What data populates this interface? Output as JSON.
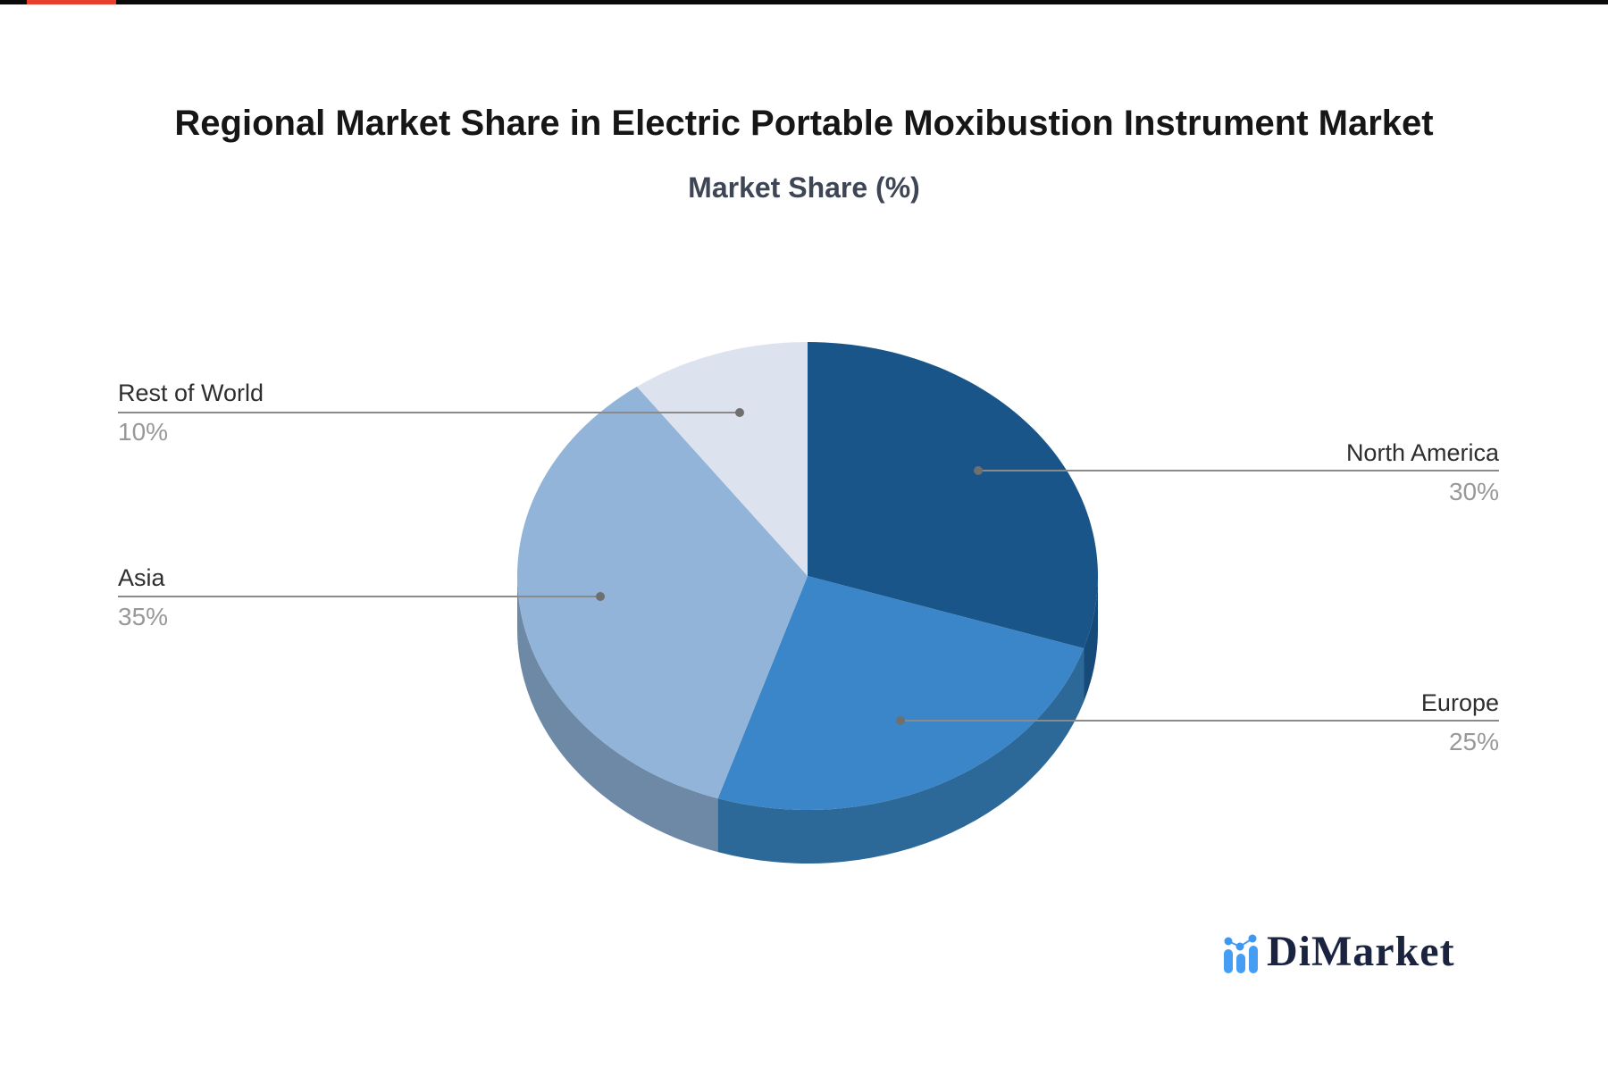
{
  "page": {
    "topbar": {
      "bar_color": "#0a0a0a",
      "accent_color": "#e8402e"
    }
  },
  "chart_data": {
    "type": "pie",
    "style": "3d",
    "title": "Regional Market Share in Electric Portable Moxibustion Instrument Market",
    "subtitle": "Market Share (%)",
    "unit": "%",
    "start_angle": "top",
    "direction": "clockwise",
    "legend_position": "callout-labels",
    "slices": [
      {
        "label": "North America",
        "value": 30,
        "pct_label": "30%",
        "color": "#1A5589",
        "side_color": "#164A79"
      },
      {
        "label": "Europe",
        "value": 25,
        "pct_label": "25%",
        "color": "#3A86C8",
        "side_color": "#2C6898"
      },
      {
        "label": "Asia",
        "value": 35,
        "pct_label": "35%",
        "color": "#92B4D8",
        "side_color": "#6E89A6"
      },
      {
        "label": "Rest of World",
        "value": 10,
        "pct_label": "10%",
        "color": "#DDE3EE",
        "side_color": "#B7C2D4"
      }
    ],
    "callout_line_color": "#8a8a8a",
    "callout_dot_color": "#6f6f6f",
    "label_color": "#2e2e2e",
    "value_color": "#989898"
  },
  "logo": {
    "text": "DiMarket",
    "icon": "bar-chart-with-dots-icon",
    "icon_color": "#469df4",
    "text_color": "#1a2440"
  }
}
